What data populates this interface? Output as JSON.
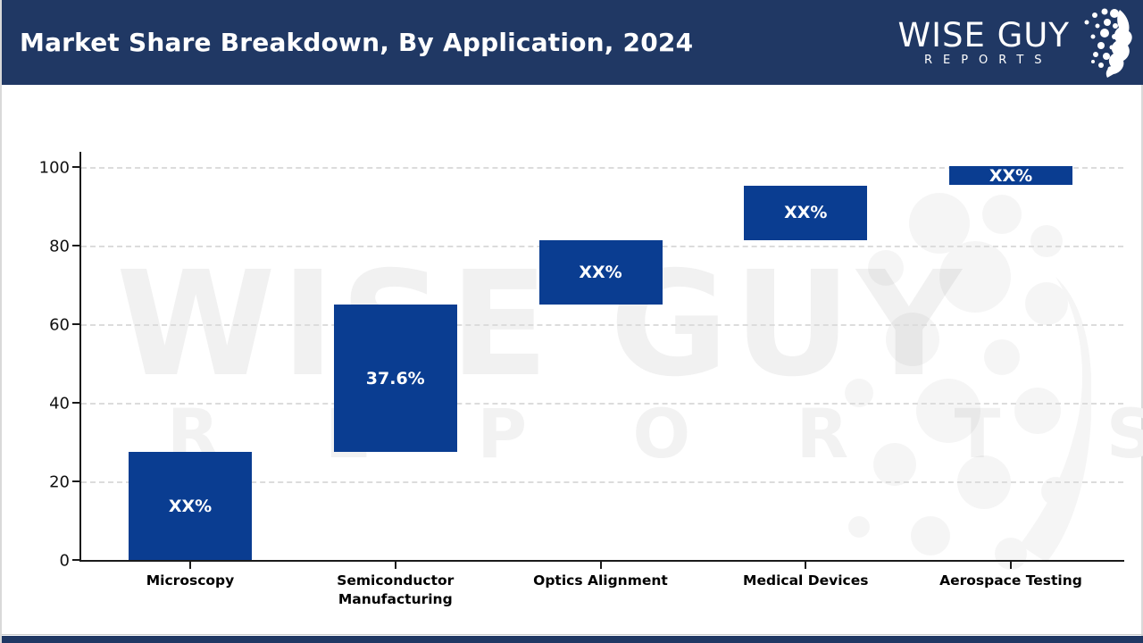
{
  "header": {
    "title": "Market Share Breakdown, By Application, 2024",
    "bg_color": "#203864",
    "logo": {
      "line1": "WISE GUY",
      "line2": "REPORTS"
    }
  },
  "watermark": {
    "line1": "WISE GUY",
    "line2": "R E P O R T S"
  },
  "chart_data": {
    "type": "bar",
    "subtype": "waterfall",
    "title": "Market Share Breakdown, By Application, 2024",
    "xlabel": "",
    "ylabel": "",
    "ylim": [
      0,
      104
    ],
    "yticks": [
      0,
      20,
      40,
      60,
      80,
      100
    ],
    "grid": "horizontal dashed",
    "legend": "none",
    "bar_color": "#0a3d91",
    "label_color": "#ffffff",
    "categories": [
      "Microscopy",
      "Semiconductor\nManufacturing",
      "Optics Alignment",
      "Medical Devices",
      "Aerospace Testing"
    ],
    "segments": [
      {
        "category": "Microscopy",
        "start": 0,
        "end": 27.4,
        "label": "XX%"
      },
      {
        "category": "Semiconductor Manufacturing",
        "start": 27.4,
        "end": 65.0,
        "label": "37.6%"
      },
      {
        "category": "Optics Alignment",
        "start": 65.0,
        "end": 81.4,
        "label": "XX%"
      },
      {
        "category": "Medical Devices",
        "start": 81.4,
        "end": 95.2,
        "label": "XX%"
      },
      {
        "category": "Aerospace Testing",
        "start": 95.4,
        "end": 100.2,
        "label": "XX%"
      }
    ]
  },
  "colors": {
    "header_bg": "#203864",
    "bar": "#0a3d91",
    "gridline": "#dcdcdc",
    "axis": "#1a1a1a",
    "footer_bar": "#203864"
  }
}
